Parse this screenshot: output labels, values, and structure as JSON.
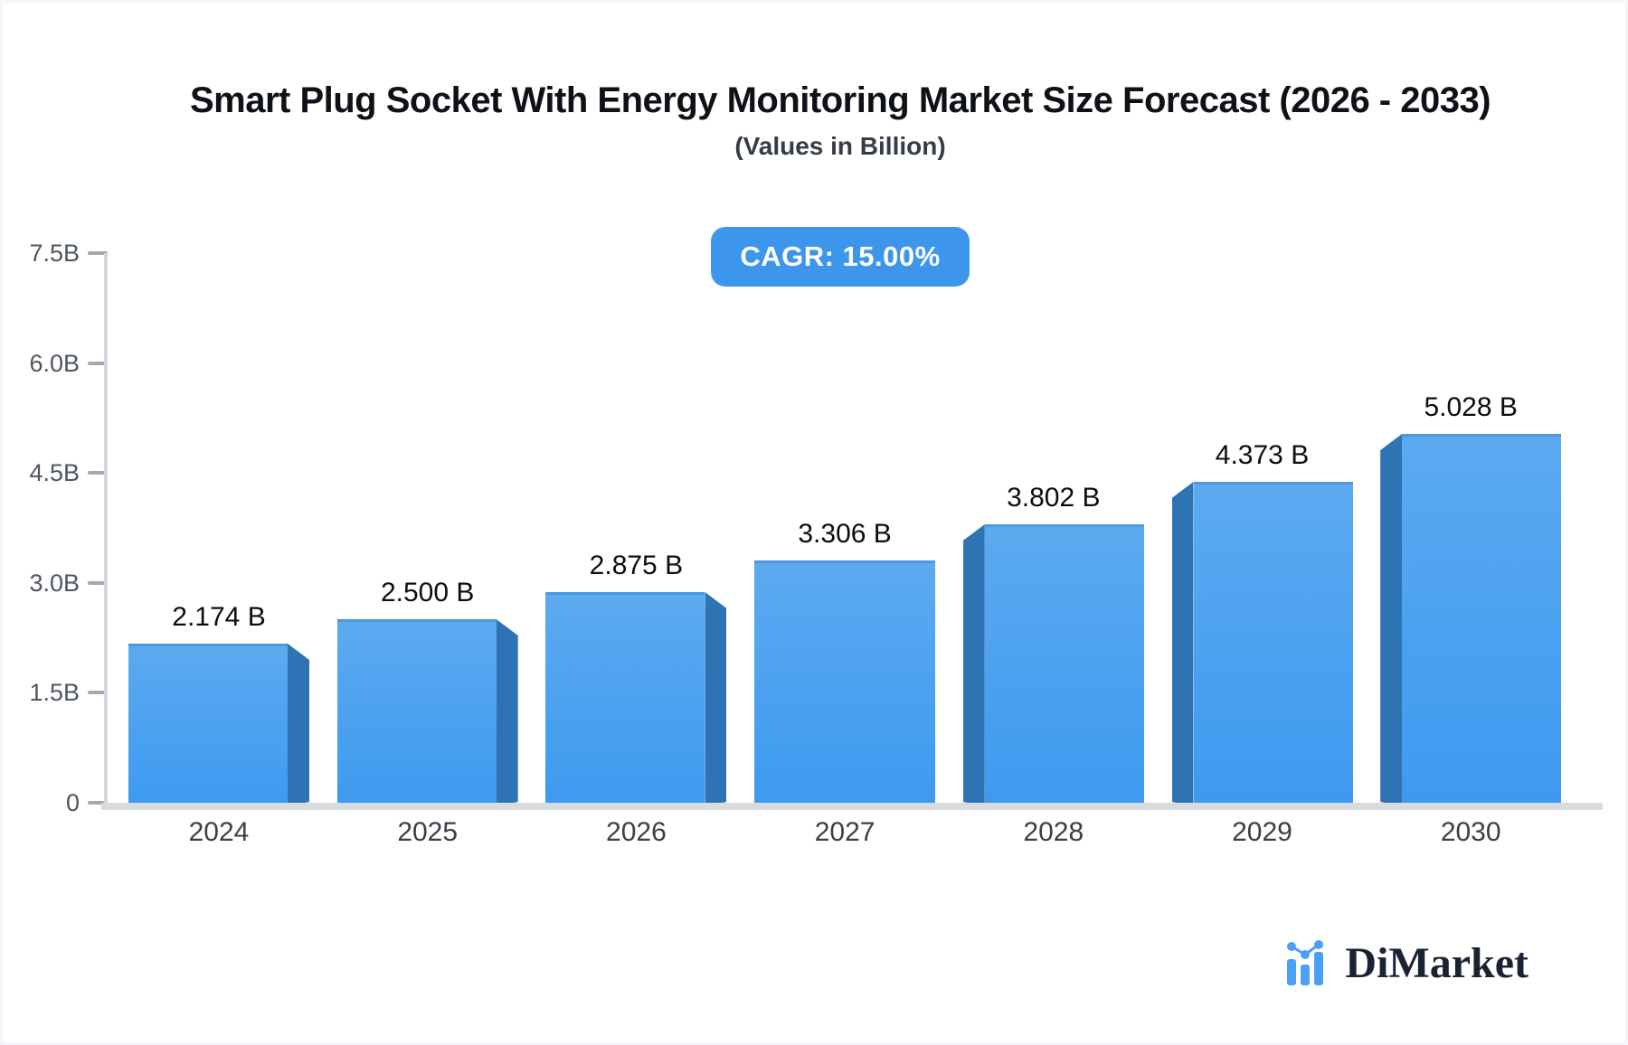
{
  "chart_data": {
    "type": "bar",
    "title": "Smart Plug Socket With Energy Monitoring Market Size Forecast (2026 - 2033)",
    "subtitle": "(Values in Billion)",
    "cagr_label": "CAGR: 15.00%",
    "categories": [
      "2024",
      "2025",
      "2026",
      "2027",
      "2028",
      "2029",
      "2030"
    ],
    "values": [
      2.174,
      2.5,
      2.875,
      3.306,
      3.802,
      4.373,
      5.028
    ],
    "value_labels": [
      "2.174 B",
      "2.500 B",
      "2.875 B",
      "3.306 B",
      "3.802 B",
      "4.373 B",
      "5.028 B"
    ],
    "xlabel": "",
    "ylabel": "",
    "ylim": [
      0,
      7.5
    ],
    "yticks": [
      {
        "v": 0,
        "label": "0"
      },
      {
        "v": 1.5,
        "label": "1.5B"
      },
      {
        "v": 3.0,
        "label": "3.0B"
      },
      {
        "v": 4.5,
        "label": "4.5B"
      },
      {
        "v": 6.0,
        "label": "6.0B"
      },
      {
        "v": 7.5,
        "label": "7.5B"
      }
    ],
    "grid": false,
    "legend": null,
    "bar_style": "3d-extruded, perspective vanishing point at center bar"
  },
  "badge": {
    "label": "CAGR: 15.00%"
  },
  "logo": {
    "brand": "DiMarket",
    "icon": "mini-bar-chart-with-trend-dots"
  },
  "colors": {
    "badge_bg": "#3e96ec",
    "bar_face_top": "#5caaf0",
    "bar_face_bottom": "#3d9af0",
    "bar_top_edge": "#4f97de",
    "bar_side": "#2e74b4",
    "axis_line": "#d3d6db",
    "baseline": "#d9dcdf",
    "brand_blue": "#4aa0f4",
    "brand_navy": "#1a2334"
  }
}
